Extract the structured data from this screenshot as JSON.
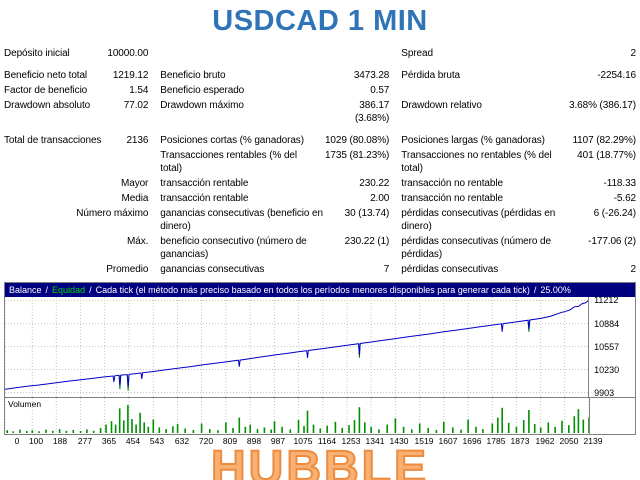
{
  "title": "USDCAD 1 MIN",
  "watermark": "HUBBLE",
  "report": {
    "rows": [
      {
        "c": [
          "Depósito inicial",
          "10000.00",
          "",
          "",
          "Spread",
          "2"
        ]
      },
      {
        "gap": true,
        "c": [
          "Beneficio neto total",
          "1219.12",
          "Beneficio bruto",
          "3473.28",
          "Pérdida bruta",
          "-2254.16"
        ]
      },
      {
        "c": [
          "Factor de beneficio",
          "1.54",
          "Beneficio esperado",
          "0.57",
          "",
          ""
        ]
      },
      {
        "c": [
          "Drawdown absoluto",
          "77.02",
          "Drawdown máximo",
          "386.17\n(3.68%)",
          "Drawdown relativo",
          "3.68% (386.17)"
        ]
      },
      {
        "gap": true,
        "c": [
          "Total de transacciones",
          "2136",
          "Posiciones cortas (% ganadoras)",
          "1029 (80.08%)",
          "Posiciones largas (% ganadoras)",
          "1107 (82.29%)"
        ]
      },
      {
        "c": [
          "",
          "",
          "Transacciones rentables (% del total)",
          "1735 (81.23%)",
          "Transacciones no rentables (% del total)",
          "401 (18.77%)"
        ]
      },
      {
        "c": [
          "",
          "Mayor",
          "transacción rentable",
          "230.22",
          "transacción no rentable",
          "-118.33"
        ]
      },
      {
        "c": [
          "",
          "Media",
          "transacción rentable",
          "2.00",
          "transacción no rentable",
          "-5.62"
        ]
      },
      {
        "c": [
          "",
          "Número máximo",
          "ganancias consecutivas (beneficio en dinero)",
          "30 (13.74)",
          "pérdidas consecutivas (pérdidas en dinero)",
          "6 (-26.24)"
        ]
      },
      {
        "c": [
          "",
          "Máx.",
          "beneficio consecutivo (número de ganancias)",
          "230.22 (1)",
          "pérdidas consecutivas (número de pérdidas)",
          "-177.06 (2)"
        ]
      },
      {
        "c": [
          "",
          "Promedio",
          "ganancias consecutivas",
          "7",
          "pérdidas consecutivas",
          "2"
        ]
      }
    ]
  },
  "chart": {
    "header": {
      "parts": [
        {
          "text": "Balance",
          "color": "#FFFFFF"
        },
        {
          "text": "/",
          "color": "#FFFFFF"
        },
        {
          "text": "Equidad",
          "color": "#00D800"
        },
        {
          "text": "/",
          "color": "#FFFFFF"
        },
        {
          "text": "Cada tick (el método más preciso basado en todos los períodos menores disponibles para generar cada tick)",
          "color": "#FFFFFF"
        },
        {
          "text": "/",
          "color": "#FFFFFF"
        },
        {
          "text": "25.00%",
          "color": "#FFFFFF"
        }
      ]
    },
    "volume_label": "Volumen"
  },
  "chart_data": {
    "type": "line",
    "title": "Balance / Equidad",
    "x_max": 2139,
    "y_min": 9903,
    "y_max": 11212,
    "x_ticks": [
      0,
      100,
      188,
      277,
      365,
      454,
      543,
      632,
      720,
      809,
      898,
      987,
      1075,
      1164,
      1253,
      1341,
      1430,
      1519,
      1607,
      1696,
      1785,
      1873,
      1962,
      2050,
      2139
    ],
    "y_ticks": [
      11212,
      10884,
      10557,
      10230,
      9903
    ],
    "series": [
      {
        "name": "Balance",
        "color": "#0000C8",
        "points": [
          [
            0,
            9948
          ],
          [
            40,
            9970
          ],
          [
            80,
            9992
          ],
          [
            120,
            10008
          ],
          [
            160,
            10028
          ],
          [
            188,
            10042
          ],
          [
            230,
            10062
          ],
          [
            277,
            10084
          ],
          [
            320,
            10104
          ],
          [
            360,
            10124
          ],
          [
            396,
            10138
          ],
          [
            399,
            10052
          ],
          [
            402,
            10140
          ],
          [
            418,
            10148
          ],
          [
            421,
            10002
          ],
          [
            424,
            10150
          ],
          [
            448,
            10158
          ],
          [
            451,
            9984
          ],
          [
            454,
            10160
          ],
          [
            470,
            10168
          ],
          [
            498,
            10180
          ],
          [
            501,
            10096
          ],
          [
            504,
            10184
          ],
          [
            543,
            10202
          ],
          [
            580,
            10222
          ],
          [
            632,
            10248
          ],
          [
            680,
            10272
          ],
          [
            720,
            10294
          ],
          [
            760,
            10314
          ],
          [
            809,
            10338
          ],
          [
            855,
            10362
          ],
          [
            858,
            10270
          ],
          [
            861,
            10364
          ],
          [
            898,
            10386
          ],
          [
            940,
            10410
          ],
          [
            987,
            10436
          ],
          [
            1030,
            10458
          ],
          [
            1075,
            10482
          ],
          [
            1105,
            10498
          ],
          [
            1108,
            10394
          ],
          [
            1111,
            10500
          ],
          [
            1164,
            10528
          ],
          [
            1210,
            10552
          ],
          [
            1253,
            10576
          ],
          [
            1295,
            10598
          ],
          [
            1298,
            10440
          ],
          [
            1301,
            10600
          ],
          [
            1341,
            10622
          ],
          [
            1390,
            10648
          ],
          [
            1430,
            10670
          ],
          [
            1480,
            10698
          ],
          [
            1519,
            10718
          ],
          [
            1560,
            10740
          ],
          [
            1607,
            10766
          ],
          [
            1650,
            10790
          ],
          [
            1696,
            10814
          ],
          [
            1740,
            10838
          ],
          [
            1785,
            10862
          ],
          [
            1818,
            10880
          ],
          [
            1821,
            10768
          ],
          [
            1824,
            10882
          ],
          [
            1873,
            10908
          ],
          [
            1916,
            10932
          ],
          [
            1919,
            10806
          ],
          [
            1922,
            10934
          ],
          [
            1962,
            10958
          ],
          [
            2000,
            10990
          ],
          [
            2040,
            11046
          ],
          [
            2050,
            11052
          ],
          [
            2070,
            11080
          ],
          [
            2085,
            11122
          ],
          [
            2100,
            11128
          ],
          [
            2115,
            11170
          ],
          [
            2125,
            11176
          ],
          [
            2139,
            11218
          ]
        ]
      },
      {
        "name": "Equidad",
        "color": "#008000",
        "spike_segments": [
          [
            [
              418,
              10148
            ],
            [
              421,
              9950
            ],
            [
              424,
              10150
            ]
          ],
          [
            [
              448,
              10158
            ],
            [
              451,
              9930
            ],
            [
              454,
              10160
            ]
          ],
          [
            [
              1295,
              10598
            ],
            [
              1298,
              10398
            ],
            [
              1301,
              10600
            ]
          ],
          [
            [
              1916,
              10932
            ],
            [
              1919,
              10766
            ],
            [
              1922,
              10934
            ]
          ]
        ]
      }
    ],
    "volume": {
      "name": "Volumen",
      "color": "#009000",
      "bars_relative": [
        [
          8,
          0.1
        ],
        [
          30,
          0.06
        ],
        [
          55,
          0.12
        ],
        [
          80,
          0.07
        ],
        [
          100,
          0.1
        ],
        [
          125,
          0.06
        ],
        [
          150,
          0.12
        ],
        [
          175,
          0.08
        ],
        [
          200,
          0.14
        ],
        [
          225,
          0.08
        ],
        [
          250,
          0.11
        ],
        [
          277,
          0.07
        ],
        [
          300,
          0.13
        ],
        [
          325,
          0.08
        ],
        [
          350,
          0.18
        ],
        [
          370,
          0.3
        ],
        [
          390,
          0.42
        ],
        [
          405,
          0.3
        ],
        [
          420,
          0.88
        ],
        [
          435,
          0.45
        ],
        [
          450,
          1.0
        ],
        [
          465,
          0.5
        ],
        [
          480,
          0.3
        ],
        [
          495,
          0.72
        ],
        [
          510,
          0.38
        ],
        [
          525,
          0.22
        ],
        [
          543,
          0.48
        ],
        [
          565,
          0.2
        ],
        [
          590,
          0.14
        ],
        [
          615,
          0.24
        ],
        [
          632,
          0.32
        ],
        [
          660,
          0.16
        ],
        [
          690,
          0.11
        ],
        [
          720,
          0.34
        ],
        [
          750,
          0.14
        ],
        [
          780,
          0.1
        ],
        [
          809,
          0.38
        ],
        [
          835,
          0.18
        ],
        [
          858,
          0.55
        ],
        [
          880,
          0.22
        ],
        [
          898,
          0.3
        ],
        [
          925,
          0.14
        ],
        [
          950,
          0.2
        ],
        [
          975,
          0.12
        ],
        [
          987,
          0.42
        ],
        [
          1015,
          0.22
        ],
        [
          1045,
          0.13
        ],
        [
          1075,
          0.46
        ],
        [
          1095,
          0.25
        ],
        [
          1108,
          0.8
        ],
        [
          1130,
          0.3
        ],
        [
          1155,
          0.16
        ],
        [
          1180,
          0.26
        ],
        [
          1210,
          0.4
        ],
        [
          1235,
          0.18
        ],
        [
          1260,
          0.28
        ],
        [
          1280,
          0.46
        ],
        [
          1298,
          0.92
        ],
        [
          1318,
          0.38
        ],
        [
          1341,
          0.22
        ],
        [
          1370,
          0.13
        ],
        [
          1400,
          0.3
        ],
        [
          1430,
          0.52
        ],
        [
          1460,
          0.22
        ],
        [
          1490,
          0.13
        ],
        [
          1519,
          0.34
        ],
        [
          1550,
          0.18
        ],
        [
          1580,
          0.11
        ],
        [
          1607,
          0.4
        ],
        [
          1640,
          0.2
        ],
        [
          1670,
          0.12
        ],
        [
          1696,
          0.48
        ],
        [
          1725,
          0.22
        ],
        [
          1750,
          0.14
        ],
        [
          1785,
          0.34
        ],
        [
          1805,
          0.55
        ],
        [
          1821,
          0.9
        ],
        [
          1845,
          0.36
        ],
        [
          1873,
          0.22
        ],
        [
          1900,
          0.46
        ],
        [
          1919,
          0.82
        ],
        [
          1940,
          0.32
        ],
        [
          1962,
          0.2
        ],
        [
          1990,
          0.38
        ],
        [
          2015,
          0.22
        ],
        [
          2040,
          0.44
        ],
        [
          2065,
          0.28
        ],
        [
          2085,
          0.6
        ],
        [
          2100,
          0.85
        ],
        [
          2118,
          0.48
        ],
        [
          2139,
          0.55
        ]
      ]
    }
  }
}
